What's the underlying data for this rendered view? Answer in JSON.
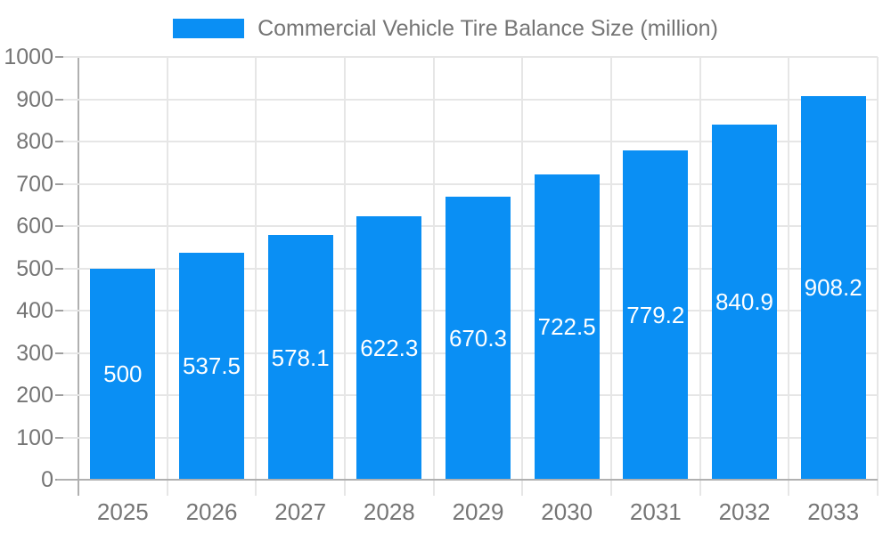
{
  "legend": {
    "label": "Commercial Vehicle Tire Balance Size (million)",
    "swatch_color": "#0a8ff4"
  },
  "chart_data": {
    "type": "bar",
    "title": "Commercial Vehicle Tire Balance Size (million)",
    "categories": [
      "2025",
      "2026",
      "2027",
      "2028",
      "2029",
      "2030",
      "2031",
      "2032",
      "2033"
    ],
    "values": [
      500,
      537.5,
      578.1,
      622.3,
      670.3,
      722.5,
      779.2,
      840.9,
      908.2
    ],
    "bar_labels": [
      "500",
      "537.5",
      "578.1",
      "622.3",
      "670.3",
      "722.5",
      "779.2",
      "840.9",
      "908.2"
    ],
    "xlabel": "",
    "ylabel": "",
    "ylim": [
      0,
      1000
    ],
    "ytick_interval": 100,
    "ytick_labels": [
      "0",
      "100",
      "200",
      "300",
      "400",
      "500",
      "600",
      "700",
      "800",
      "900",
      "1000"
    ],
    "grid": true,
    "legend_position": "top",
    "colors": {
      "bar": "#0a8ff4",
      "bar_label_text": "#ffffff",
      "axis_text": "#757575",
      "gridline": "#e6e6e6",
      "axis_line": "#b0b0b0",
      "y_tick": "#9e9e9e",
      "x_tick_extension": "#e0e0e0",
      "background": "#ffffff"
    }
  }
}
